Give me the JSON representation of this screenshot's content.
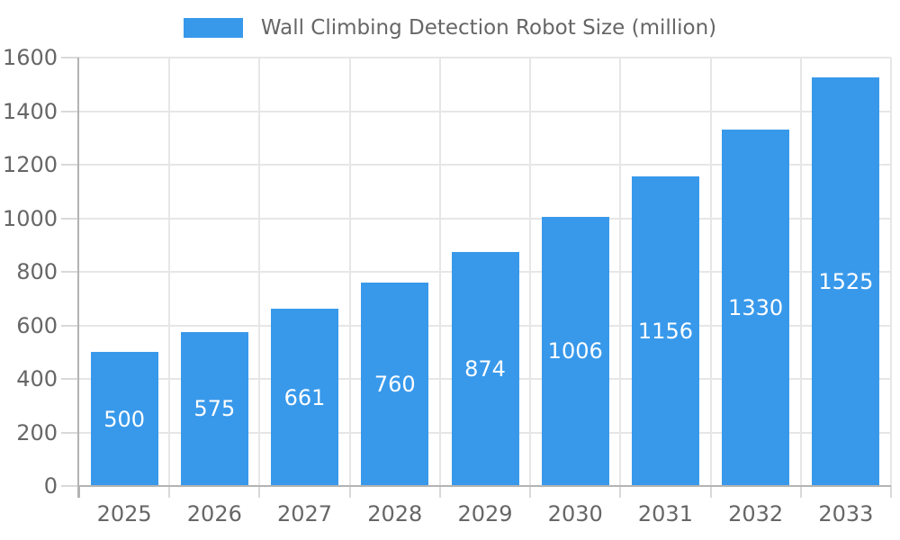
{
  "legend": {
    "label": "Wall Climbing Detection Robot Size (million)"
  },
  "chart_data": {
    "type": "bar",
    "title": "",
    "xlabel": "",
    "ylabel": "",
    "categories": [
      "2025",
      "2026",
      "2027",
      "2028",
      "2029",
      "2030",
      "2031",
      "2032",
      "2033"
    ],
    "series": [
      {
        "name": "Wall Climbing Detection Robot Size (million)",
        "values": [
          500,
          575,
          661,
          760,
          874,
          1006,
          1156,
          1330,
          1525
        ],
        "color": "#3899EB"
      }
    ],
    "ylim": [
      0,
      1600
    ],
    "ytick_step": 200,
    "grid": true,
    "legend_position": "top",
    "colors": {
      "bar": "#3899EB",
      "bar_value_label": "#FFFFFF",
      "axis_label": "#666666",
      "gridline": "#E6E6E6",
      "axis_line": "#B3B3B3",
      "tick": "#D9D9D9"
    }
  }
}
